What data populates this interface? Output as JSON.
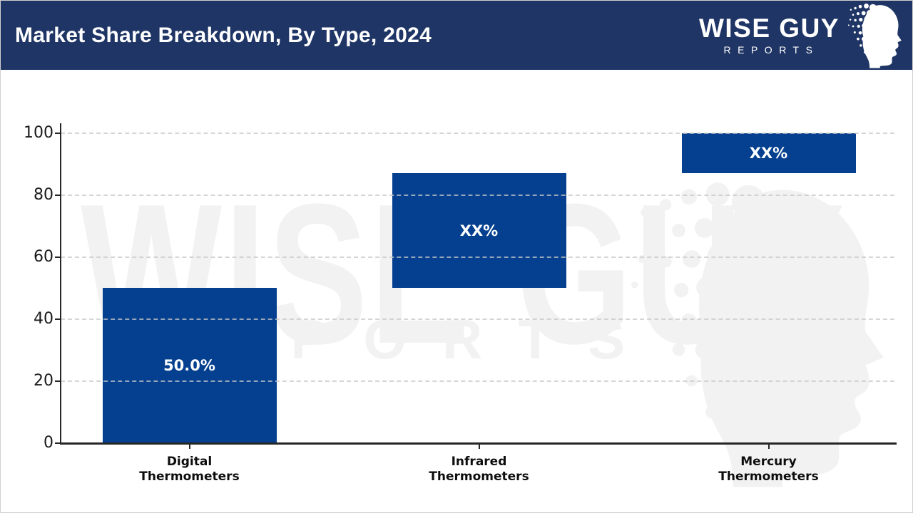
{
  "header": {
    "bg_color": "#1f3565",
    "title": "Market Share Breakdown, By Type, 2024",
    "logo": {
      "name_top": "WISE GUY",
      "name_bottom": "REPORTS"
    }
  },
  "watermark": {
    "big_text": "WISE GUY",
    "small_text": "REPORTS",
    "color": "#f2f2f2"
  },
  "chart_data": {
    "type": "bar",
    "variant": "waterfall",
    "title": "Market Share Breakdown, By Type, 2024",
    "xlabel": "",
    "ylabel": "",
    "categories": [
      "Digital Thermometers",
      "Infrared Thermometers",
      "Mercury Thermometers"
    ],
    "category_lines": [
      [
        "Digital",
        "Thermometers"
      ],
      [
        "Infrared",
        "Thermometers"
      ],
      [
        "Mercury",
        "Thermometers"
      ]
    ],
    "segments": [
      {
        "category": "Digital Thermometers",
        "start": 0,
        "end": 50,
        "label": "50.0%"
      },
      {
        "category": "Infrared Thermometers",
        "start": 50,
        "end": 87,
        "label": "XX%"
      },
      {
        "category": "Mercury Thermometers",
        "start": 87,
        "end": 100,
        "label": "XX%"
      }
    ],
    "yticks": [
      0,
      20,
      40,
      60,
      80,
      100
    ],
    "ylim": [
      0,
      103
    ],
    "grid": {
      "horizontal": true,
      "style": "dashed",
      "color": "#d9d9d9",
      "on_top": true
    },
    "legend": "none",
    "bar_color": "#04408f",
    "bar_label_color": "#ffffff",
    "axis_color": "#262626",
    "tick_label_color": "#1a1a1a"
  }
}
